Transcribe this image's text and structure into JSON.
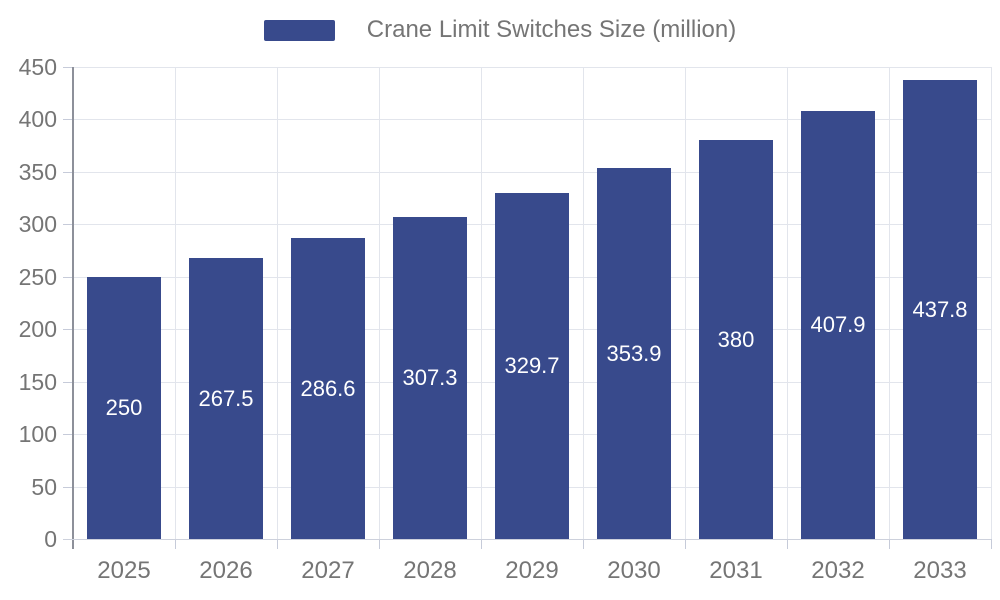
{
  "legend": {
    "label": "Crane Limit Switches Size (million)"
  },
  "chart_data": {
    "type": "bar",
    "title": "Crane Limit Switches Size (million)",
    "series_name": "Crane Limit Switches Size (million)",
    "categories": [
      "2025",
      "2026",
      "2027",
      "2028",
      "2029",
      "2030",
      "2031",
      "2032",
      "2033"
    ],
    "values": [
      250,
      267.5,
      286.6,
      307.3,
      329.7,
      353.9,
      380,
      407.9,
      437.8
    ],
    "value_labels": [
      "250",
      "267.5",
      "286.6",
      "307.3",
      "329.7",
      "353.9",
      "380",
      "407.9",
      "437.8"
    ],
    "xlabel": "",
    "ylabel": "",
    "ylim": [
      0,
      450
    ],
    "ytick_step": 50,
    "y_tick_labels": [
      "0",
      "50",
      "100",
      "150",
      "200",
      "250",
      "300",
      "350",
      "400",
      "450"
    ],
    "grid": true,
    "legend_position": "top",
    "colors": {
      "bar": "#384A8C",
      "value_label": "#FFFFFF",
      "axis_text": "#757575",
      "grid_line": "#E2E5EC",
      "axis_line_y": "#8D909A",
      "axis_line_x": "#CDD1DC",
      "tick": "#C6CBD9",
      "background": "#FFFFFF"
    }
  }
}
